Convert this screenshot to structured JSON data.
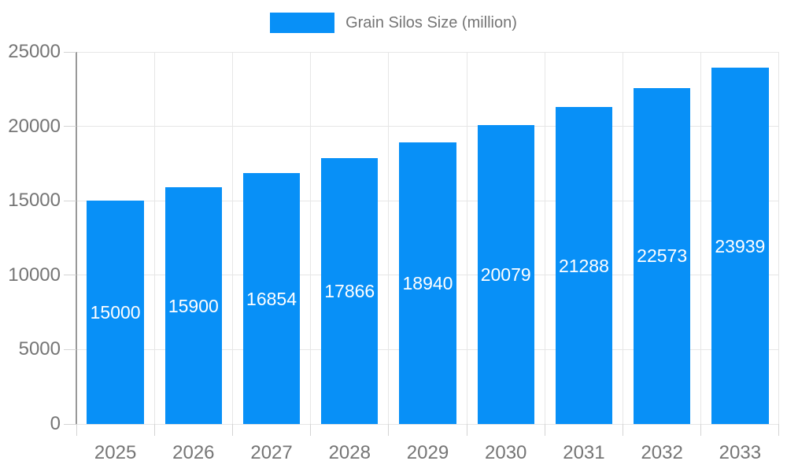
{
  "chart_data": {
    "type": "bar",
    "title": "Grain Silos Size (million)",
    "categories": [
      "2025",
      "2026",
      "2027",
      "2028",
      "2029",
      "2030",
      "2031",
      "2032",
      "2033"
    ],
    "series": [
      {
        "name": "Grain Silos Size (million)",
        "values": [
          15000,
          15900,
          16854,
          17866,
          18940,
          20079,
          21288,
          22573,
          23939
        ]
      }
    ],
    "value_labels": [
      "15000",
      "15900",
      "16854",
      "17866",
      "18940",
      "20079",
      "21288",
      "22573",
      "23939"
    ],
    "xlabel": "",
    "ylabel": "",
    "ylim": [
      0,
      25000
    ],
    "yticks": [
      0,
      5000,
      10000,
      15000,
      20000,
      25000
    ],
    "ytick_labels": [
      "0",
      "5000",
      "10000",
      "15000",
      "20000",
      "25000"
    ],
    "grid": true,
    "legend_position": "top",
    "colors": {
      "bar": "#0890f7",
      "bar_value_text": "#ffffff",
      "axis_text": "#757575",
      "legend_text": "#757575",
      "gridline": "#e6e6e6",
      "axis_line": "#999999",
      "tick": "#d4d4d4",
      "background": "#ffffff"
    }
  }
}
